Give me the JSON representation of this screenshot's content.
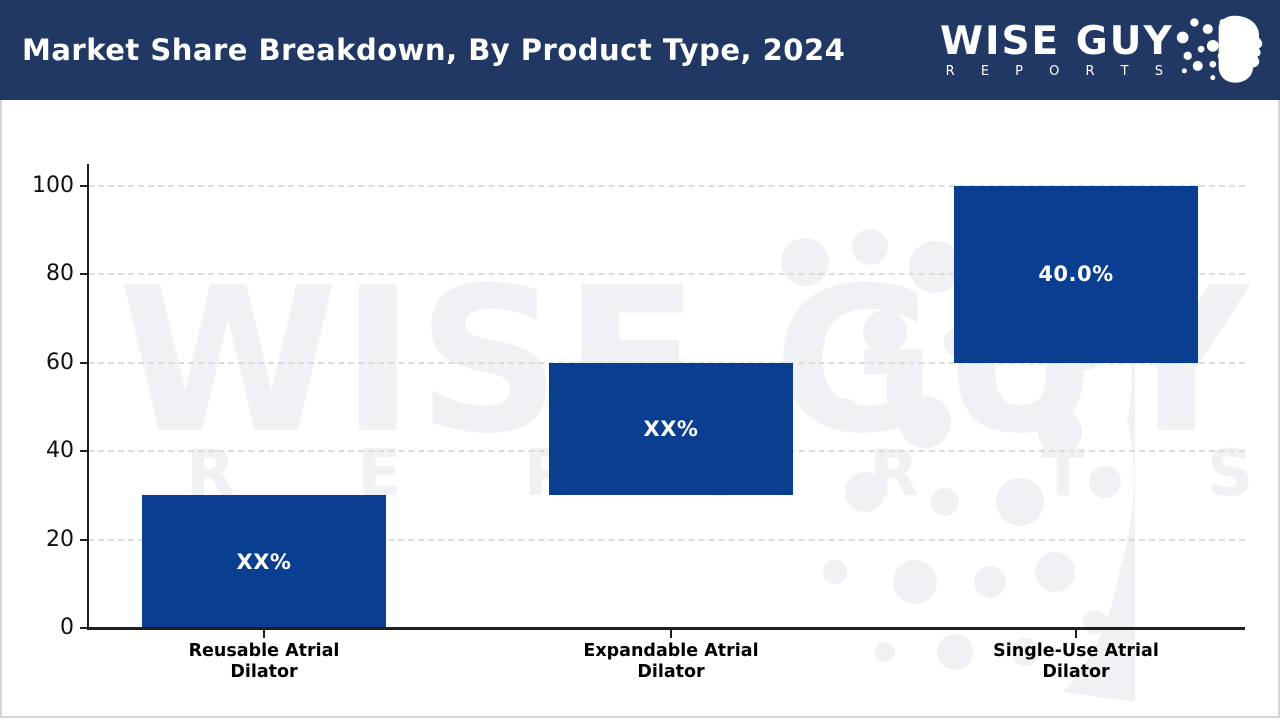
{
  "header": {
    "title": "Market Share Breakdown, By Product Type, 2024",
    "logo": {
      "line1": "WISE GUY",
      "line2": "R E P O R T S"
    }
  },
  "watermark": {
    "line1": "WISE GUY",
    "line2": "R E P O R T S"
  },
  "colors": {
    "header_bg": "#203863",
    "bar_blue": "#0a3e91",
    "grid_gray": "#dcdcdc",
    "axis_dark": "#1f1f1f",
    "watermark_gray": "#f0f1f4"
  },
  "chart_data": {
    "type": "bar",
    "subtype": "stacked-waterfall",
    "title": "Market Share Breakdown, By Product Type, 2024",
    "xlabel": "",
    "ylabel": "",
    "ylim": [
      0,
      105
    ],
    "yticks": [
      0,
      20,
      40,
      60,
      80,
      100
    ],
    "grid": "horizontal-dashed",
    "legend": "none",
    "bar_color": "#0a3e91",
    "categories": [
      [
        "Reusable Atrial",
        "Dilator"
      ],
      [
        "Expandable Atrial",
        "Dilator"
      ],
      [
        "Single-Use Atrial",
        "Dilator"
      ]
    ],
    "series": [
      {
        "name": "Market Share",
        "segments": [
          {
            "category": "Reusable Atrial Dilator",
            "start": 0,
            "end": 30,
            "value_label": "XX%"
          },
          {
            "category": "Expandable Atrial Dilator",
            "start": 30,
            "end": 60,
            "value_label": "XX%"
          },
          {
            "category": "Single-Use Atrial Dilator",
            "start": 60,
            "end": 100,
            "value_label": "40.0%"
          }
        ]
      }
    ]
  }
}
